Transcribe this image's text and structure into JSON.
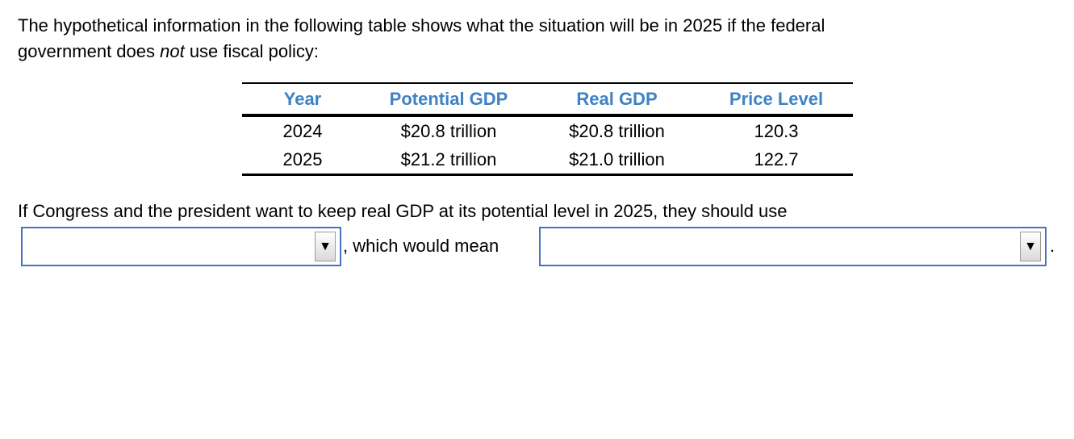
{
  "intro": {
    "line1": "The hypothetical information in the following table shows what the situation will be in 2025 if the federal",
    "line2_pre": "government does ",
    "line2_italic": "not",
    "line2_post": " use fiscal policy:"
  },
  "table": {
    "headers": [
      "Year",
      "Potential GDP",
      "Real GDP",
      "Price Level"
    ],
    "rows": [
      [
        "2024",
        "$20.8 trillion",
        "$20.8 trillion",
        "120.3"
      ],
      [
        "2025",
        "$21.2 trillion",
        "$21.0 trillion",
        "122.7"
      ]
    ]
  },
  "question": {
    "lead": "If Congress and the president want to keep real GDP at its potential level in 2025, they should use",
    "mid": ", which would mean",
    "end": "."
  },
  "dropdowns": {
    "policy": {
      "value": "",
      "arrow_glyph": "▼"
    },
    "meaning": {
      "value": "",
      "arrow_glyph": "▼"
    }
  },
  "colors": {
    "table_header_blue": "#3e82c4",
    "dropdown_border_blue": "#4472c4",
    "text_black": "#000000",
    "background_white": "#ffffff"
  }
}
